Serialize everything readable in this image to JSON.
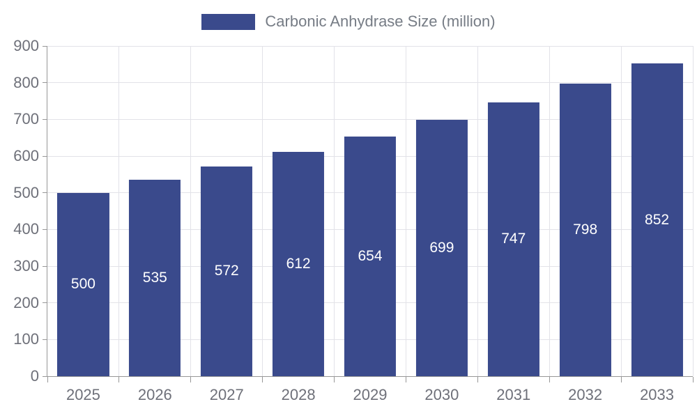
{
  "legend": {
    "label": "Carbonic Anhydrase Size (million)",
    "swatch_color": "#3A4A8C"
  },
  "chart_data": {
    "type": "bar",
    "title": "",
    "xlabel": "",
    "ylabel": "",
    "categories": [
      "2025",
      "2026",
      "2027",
      "2028",
      "2029",
      "2030",
      "2031",
      "2032",
      "2033"
    ],
    "series": [
      {
        "name": "Carbonic Anhydrase Size (million)",
        "values": [
          500,
          535,
          572,
          612,
          654,
          699,
          747,
          798,
          852
        ]
      }
    ],
    "value_labels_shown": true,
    "ylim": [
      0,
      900
    ],
    "ytick_step": 100,
    "ytick_labels": [
      "0",
      "100",
      "200",
      "300",
      "400",
      "500",
      "600",
      "700",
      "800",
      "900"
    ],
    "grid": true,
    "legend_position": "top-center",
    "bar_color": "#3A4A8C",
    "value_label_color": "#FFFFFF",
    "axis_label_color": "#6E7079",
    "axis_line_color": "#979797",
    "gridline_color": "#E2E2E8"
  }
}
